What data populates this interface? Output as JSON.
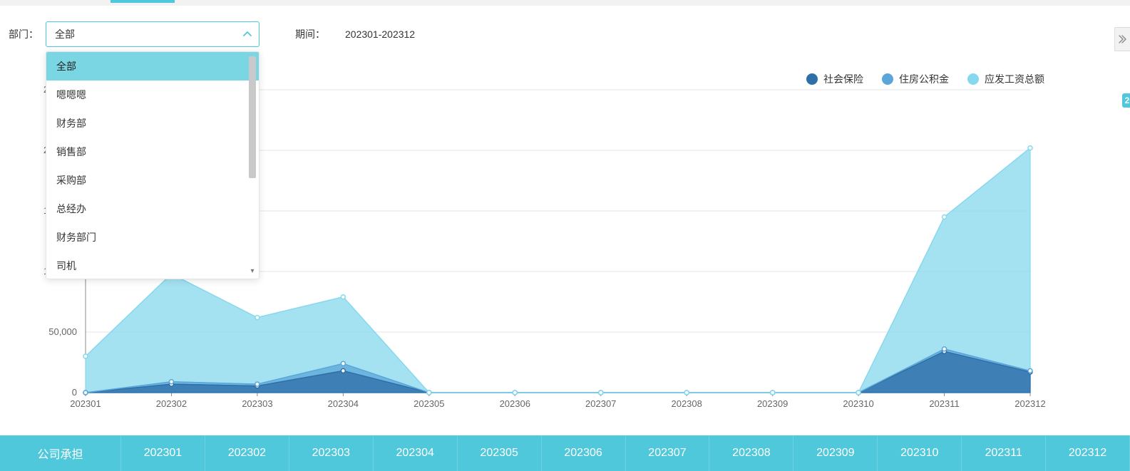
{
  "topbar": {
    "accent_color": "#4ec8da"
  },
  "filters": {
    "dept_label": "部门：",
    "dept_value": "全部",
    "period_label": "期间：",
    "period_value": "202301-202312",
    "options": [
      "全部",
      "嗯嗯嗯",
      "财务部",
      "销售部",
      "采购部",
      "总经办",
      "财务部门",
      "司机"
    ]
  },
  "side_badge": "20",
  "chart": {
    "type": "area",
    "x_categories": [
      "202301",
      "202302",
      "202303",
      "202304",
      "202305",
      "202306",
      "202307",
      "202308",
      "202309",
      "202310",
      "202311",
      "202312"
    ],
    "y_ticks": [
      0,
      50000,
      100000,
      150000,
      200000,
      250000
    ],
    "y_tick_labels": [
      "0",
      "50,000",
      "100,000",
      "150,000",
      "200,000",
      "250,000"
    ],
    "ylim": [
      0,
      250000
    ],
    "grid_color": "#e6e6e6",
    "axis_color": "#888888",
    "background_color": "#ffffff",
    "axis_fontsize": 13,
    "legend_fontsize": 14,
    "series": [
      {
        "name": "社会保险",
        "color": "#2f6fa7",
        "fill_opacity": 0.75,
        "values": [
          0,
          7000,
          5500,
          18000,
          0,
          0,
          0,
          0,
          0,
          0,
          34000,
          17000
        ]
      },
      {
        "name": "住房公积金",
        "color": "#5aa6d8",
        "fill_opacity": 0.75,
        "values": [
          0,
          9000,
          7000,
          24000,
          0,
          0,
          0,
          0,
          0,
          0,
          36000,
          18000
        ]
      },
      {
        "name": "应发工资总额",
        "color": "#86d8ee",
        "fill_opacity": 0.75,
        "values": [
          30000,
          98000,
          62000,
          79000,
          0,
          0,
          0,
          0,
          0,
          0,
          145000,
          202000
        ]
      }
    ]
  },
  "table": {
    "first_col": "公司承担",
    "months": [
      "202301",
      "202302",
      "202303",
      "202304",
      "202305",
      "202306",
      "202307",
      "202308",
      "202309",
      "202310",
      "202311",
      "202312"
    ],
    "header_bg": "#4ec8da",
    "header_color": "#ffffff"
  }
}
